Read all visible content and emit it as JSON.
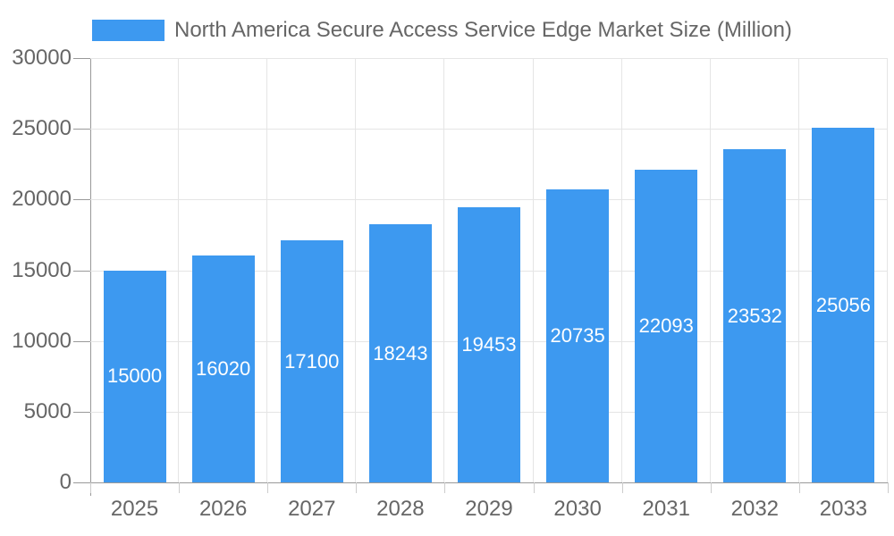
{
  "chart_data": {
    "type": "bar",
    "title": "North America Secure Access Service Edge Market Size (Million)",
    "categories": [
      "2025",
      "2026",
      "2027",
      "2028",
      "2029",
      "2030",
      "2031",
      "2032",
      "2033"
    ],
    "values": [
      15000,
      16020,
      17100,
      18243,
      19453,
      20735,
      22093,
      23532,
      25056
    ],
    "xlabel": "",
    "ylabel": "",
    "ylim": [
      0,
      30000
    ],
    "yticks": [
      0,
      5000,
      10000,
      15000,
      20000,
      25000,
      30000
    ],
    "grid": true,
    "legend_position": "top-left",
    "value_labels": "inside-center",
    "colors": {
      "bar": "#3d99f0",
      "value_label_text": "#ffffff",
      "axis_line": "#999999",
      "gridline": "#e5e5e5",
      "x_tick_mark": "#cccccc",
      "tick_text": "#666666",
      "legend_text": "#666666",
      "background": "#ffffff"
    }
  }
}
